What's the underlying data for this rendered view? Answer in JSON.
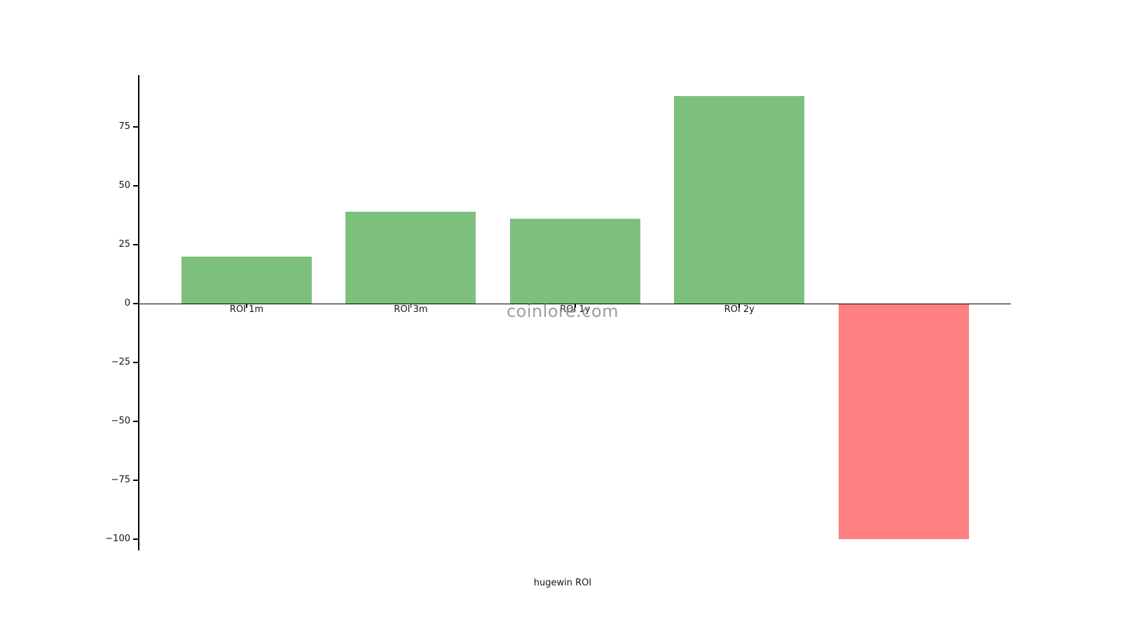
{
  "chart_data": {
    "type": "bar",
    "title": "",
    "xlabel": "hugewin ROI",
    "ylabel": "",
    "categories": [
      "ROI 1m",
      "ROI 3m",
      "ROI 1y",
      "ROI 2y",
      ""
    ],
    "values": [
      20,
      39,
      36,
      88,
      -100
    ],
    "positive_color": "#7dc07d",
    "negative_color": "#ff8080",
    "y_ticks": [
      75,
      50,
      25,
      0,
      -25,
      -50,
      -75,
      -100
    ],
    "ylim": [
      -105,
      97
    ],
    "grid": false,
    "legend": "none"
  },
  "watermark": "coinlore.com",
  "colors": {
    "axis": "#000000",
    "tick_text": "#151515",
    "watermark": "#8c8c8c",
    "background": "#ffffff"
  }
}
